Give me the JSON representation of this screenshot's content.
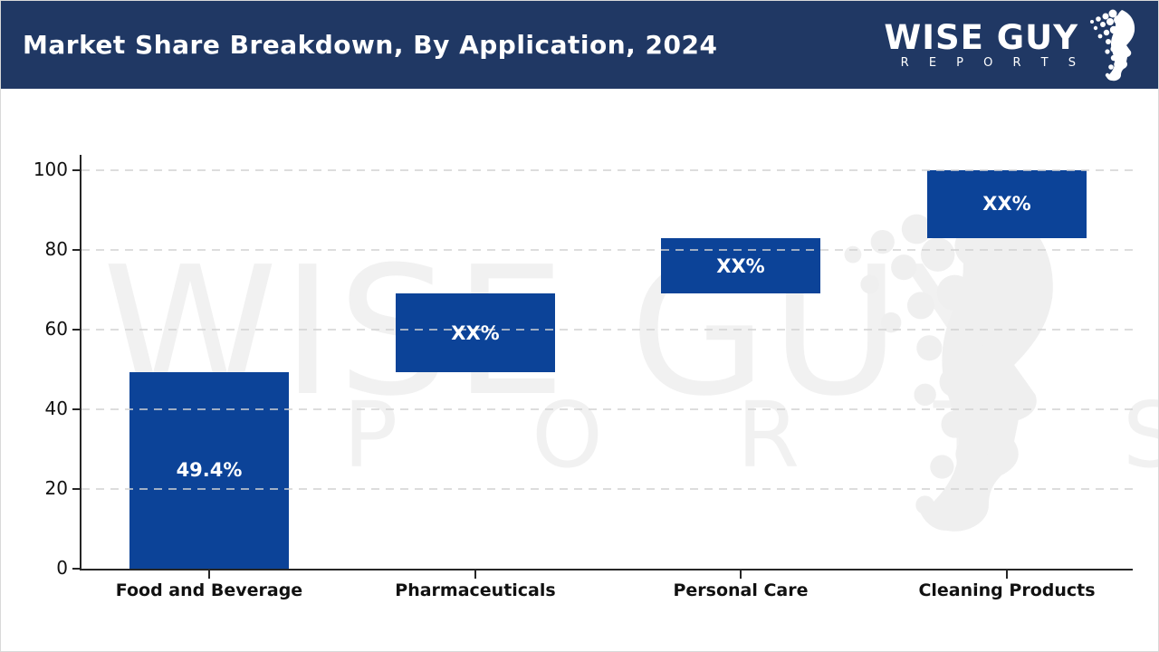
{
  "header": {
    "title": "Market Share Breakdown, By Application, 2024",
    "background_color": "#203864",
    "logo": {
      "line1": "WISE GUY",
      "line2": "R E P O R T S"
    }
  },
  "watermark": {
    "line1": "WISE GUY",
    "line2": "P O R T S"
  },
  "chart_data": {
    "type": "bar",
    "subtype": "waterfall-floating-bars",
    "title": "Market Share Breakdown, By Application, 2024",
    "categories": [
      "Food and Beverage",
      "Pharmaceuticals",
      "Personal Care",
      "Cleaning Products"
    ],
    "segments": [
      {
        "category": "Food and Beverage",
        "start": 0,
        "end": 49.4,
        "label": "49.4%"
      },
      {
        "category": "Pharmaceuticals",
        "start": 49.4,
        "end": 69.0,
        "label": "XX%"
      },
      {
        "category": "Personal Care",
        "start": 69.0,
        "end": 83.0,
        "label": "XX%"
      },
      {
        "category": "Cleaning Products",
        "start": 83.0,
        "end": 100.0,
        "label": "XX%"
      }
    ],
    "y_ticks": [
      0,
      20,
      40,
      60,
      80,
      100
    ],
    "ylim": [
      0,
      105
    ],
    "xlabel": "",
    "ylabel": "",
    "grid": "dashed-horizontal",
    "legend": false,
    "bar_color": "#0c4398",
    "bar_label_color": "#ffffff",
    "axis_color": "#262626",
    "tick_label_color": "#111111"
  }
}
